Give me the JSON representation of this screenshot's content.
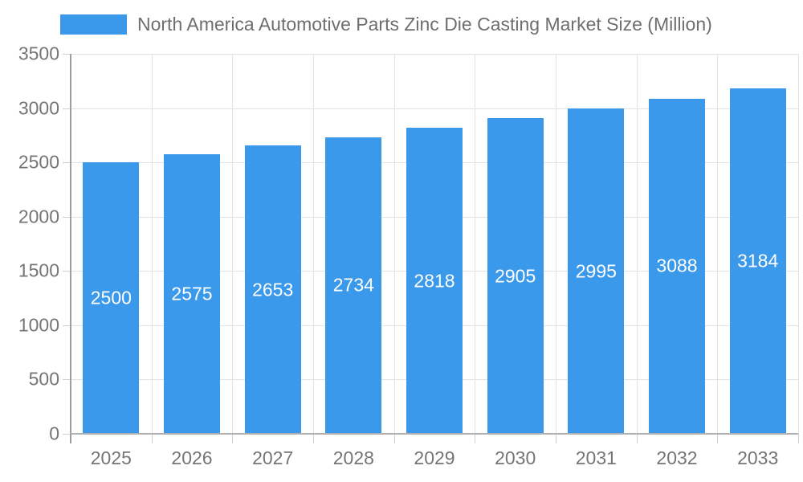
{
  "legend": {
    "label": "North America Automotive Parts Zinc Die Casting Market Size (Million)",
    "color": "#3B99EC"
  },
  "chart_data": {
    "type": "bar",
    "title": "North America Automotive Parts Zinc Die Casting Market Size (Million)",
    "categories": [
      "2025",
      "2026",
      "2027",
      "2028",
      "2029",
      "2030",
      "2031",
      "2032",
      "2033"
    ],
    "series": [
      {
        "name": "North America Automotive Parts Zinc Die Casting Market Size (Million)",
        "values": [
          2500,
          2575,
          2653,
          2734,
          2818,
          2905,
          2995,
          3088,
          3184
        ]
      }
    ],
    "xlabel": "",
    "ylabel": "",
    "ylim": [
      0,
      3500
    ],
    "yticks": [
      0,
      500,
      1000,
      1500,
      2000,
      2500,
      3000,
      3500
    ],
    "grid": true,
    "legend_position": "top",
    "bar_color": "#3B99EC",
    "value_label_color": "#FFFFFF",
    "grid_color": "#E3E3E3",
    "axis_color": "#9E9E9E",
    "tick_label_color": "#757575"
  }
}
